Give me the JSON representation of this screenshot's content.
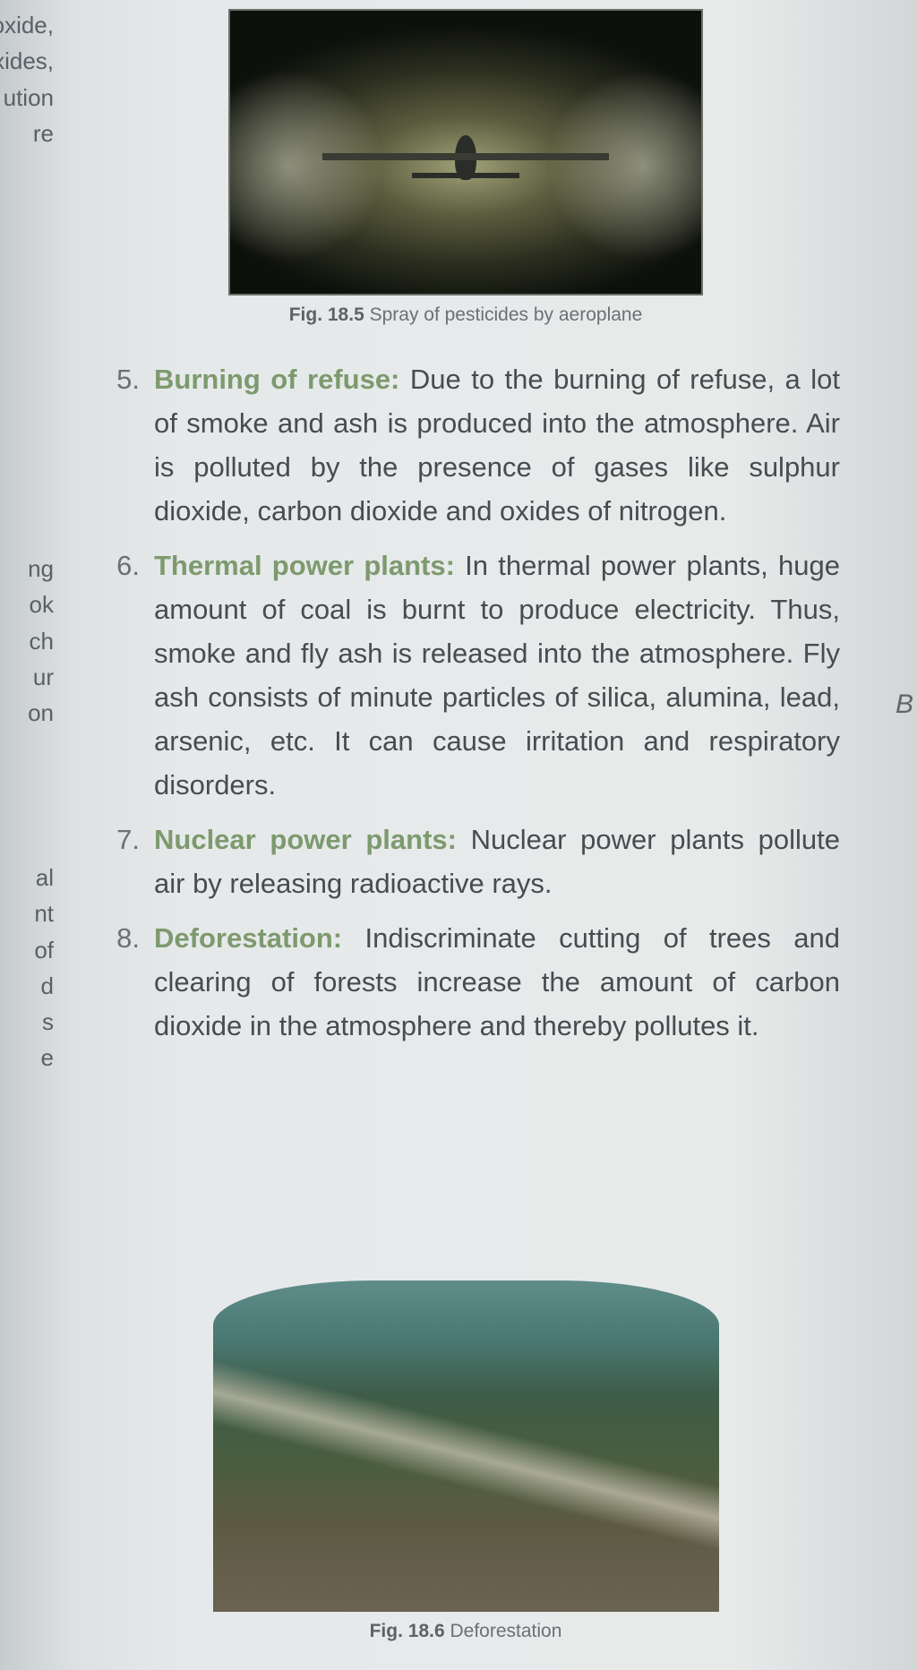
{
  "left_fragments": {
    "top": [
      "oxide,",
      "xides,",
      "ution",
      "re"
    ],
    "mid": [
      "ng",
      "ok",
      "ch",
      "ur",
      "on"
    ],
    "low": [
      "al",
      "nt",
      "of",
      "d",
      "s",
      "e"
    ]
  },
  "figure1": {
    "caption_bold": "Fig. 18.5",
    "caption_text": " Spray of pesticides by aeroplane"
  },
  "items": [
    {
      "num": "5.",
      "heading": "Burning of refuse:",
      "text": " Due to the burning of refuse, a lot of smoke and ash is produced into the atmosphere. Air is polluted by the presence of gases like sulphur dioxide, carbon dioxide and oxides of nitrogen."
    },
    {
      "num": "6.",
      "heading": "Thermal power plants:",
      "text": " In thermal power plants, huge amount of coal is burnt to produce electricity. Thus, smoke and fly ash is released into the atmosphere. Fly ash consists of minute particles of silica, alumina, lead, arsenic, etc. It can cause irritation and respiratory disorders."
    },
    {
      "num": "7.",
      "heading": "Nuclear power plants:",
      "text": " Nuclear power plants pollute air by releasing radioactive rays."
    },
    {
      "num": "8.",
      "heading": "Deforestation:",
      "text": " Indiscriminate cutting of trees and clearing of forests increase the amount of carbon dioxide in the atmosphere and thereby pollutes it."
    }
  ],
  "figure2": {
    "caption_bold": "Fig. 18.6",
    "caption_text": " Deforestation"
  },
  "right_margin_note": "B"
}
